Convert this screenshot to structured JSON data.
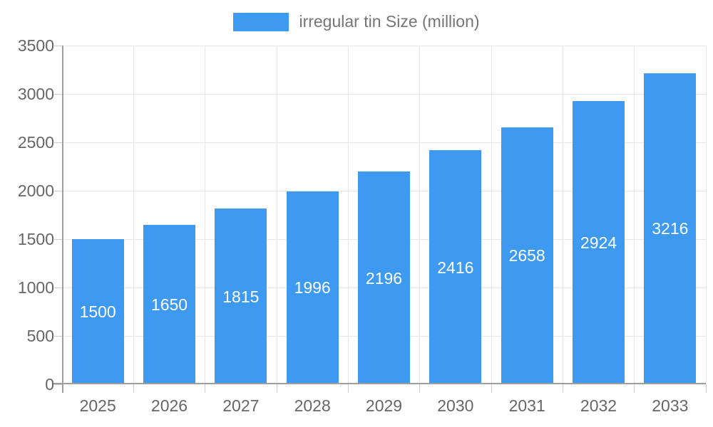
{
  "legend": {
    "label": "irregular tin Size (million)"
  },
  "colors": {
    "bar": "#3d9af0",
    "axis": "#9e9e9e",
    "grid": "#e6e6e6",
    "tick": "#cccccc",
    "axis_text": "#666666",
    "legend_text": "#757575",
    "value_label": "#ffffff",
    "background": "#ffffff"
  },
  "chart_data": {
    "type": "bar",
    "title": "",
    "xlabel": "",
    "ylabel": "",
    "categories": [
      "2025",
      "2026",
      "2027",
      "2028",
      "2029",
      "2030",
      "2031",
      "2032",
      "2033"
    ],
    "series": [
      {
        "name": "irregular tin Size (million)",
        "values": [
          1500,
          1650,
          1815,
          1996,
          2196,
          2416,
          2658,
          2924,
          3216
        ]
      }
    ],
    "ylim": [
      0,
      3500
    ],
    "ytick_step": 500,
    "ytick_labels": [
      "0",
      "500",
      "1000",
      "1500",
      "2000",
      "2500",
      "3000",
      "3500"
    ],
    "grid": true,
    "legend_position": "top-center",
    "value_labels": "inside-center",
    "bar_width_fraction": 0.73
  }
}
